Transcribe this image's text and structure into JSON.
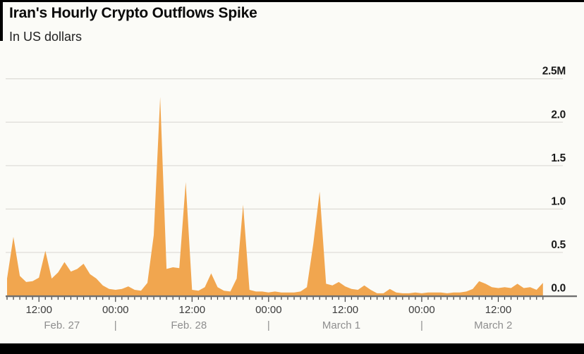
{
  "header": {
    "title": "Iran's Hourly Crypto Outflows Spike",
    "subtitle": "In US dollars"
  },
  "colors": {
    "area": "#F1A64F",
    "background": "#FBFBF7",
    "gridline": "#DFDDD8",
    "axis_line": "#6F6F6F",
    "tick": "#3F3F3F",
    "time_label": "#3C3C3C",
    "date_label": "#8E8E8E",
    "y_label": "#1A1A1A",
    "frame": "#000000"
  },
  "chart_data": {
    "type": "area",
    "title": "Iran's Hourly Crypto Outflows Spike",
    "subtitle": "In US dollars",
    "unit": "US dollars (millions)",
    "legend": "none",
    "grid": "horizontal",
    "x_start": "Feb. 27 07:00",
    "x_step_hours": 1,
    "ylim": [
      0,
      2.5
    ],
    "y_ticks": [
      {
        "value": 2.5,
        "label": "2.5M"
      },
      {
        "value": 2.0,
        "label": "2.0"
      },
      {
        "value": 1.5,
        "label": "1.5"
      },
      {
        "value": 1.0,
        "label": "1.0"
      },
      {
        "value": 0.5,
        "label": "0.5"
      },
      {
        "value": 0.0,
        "label": "0.0"
      }
    ],
    "x_major_ticks": [
      {
        "t": 5,
        "label": "12:00"
      },
      {
        "t": 17,
        "label": "00:00"
      },
      {
        "t": 29,
        "label": "12:00"
      },
      {
        "t": 41,
        "label": "00:00"
      },
      {
        "t": 53,
        "label": "12:00"
      },
      {
        "t": 65,
        "label": "00:00"
      },
      {
        "t": 77,
        "label": "12:00"
      }
    ],
    "date_labels": [
      {
        "t": 8.6,
        "label": "Feb. 27"
      },
      {
        "t": 28.5,
        "label": "Feb. 28"
      },
      {
        "t": 52.4,
        "label": "March 1"
      },
      {
        "t": 76.2,
        "label": "March 2"
      }
    ],
    "date_separators_t": [
      17,
      41,
      65
    ],
    "date_separator_glyph": "|",
    "values_hourly_musd": [
      0.2,
      0.68,
      0.23,
      0.16,
      0.17,
      0.21,
      0.52,
      0.2,
      0.27,
      0.39,
      0.28,
      0.31,
      0.37,
      0.25,
      0.2,
      0.12,
      0.08,
      0.07,
      0.08,
      0.11,
      0.07,
      0.06,
      0.15,
      0.7,
      2.29,
      0.31,
      0.33,
      0.32,
      1.31,
      0.07,
      0.06,
      0.1,
      0.26,
      0.1,
      0.06,
      0.05,
      0.2,
      1.05,
      0.07,
      0.05,
      0.05,
      0.04,
      0.05,
      0.04,
      0.04,
      0.04,
      0.05,
      0.1,
      0.6,
      1.2,
      0.14,
      0.12,
      0.16,
      0.11,
      0.08,
      0.07,
      0.12,
      0.07,
      0.03,
      0.03,
      0.08,
      0.04,
      0.03,
      0.03,
      0.04,
      0.03,
      0.04,
      0.04,
      0.04,
      0.03,
      0.04,
      0.04,
      0.05,
      0.08,
      0.17,
      0.14,
      0.1,
      0.09,
      0.1,
      0.09,
      0.14,
      0.09,
      0.1,
      0.07,
      0.15
    ]
  }
}
